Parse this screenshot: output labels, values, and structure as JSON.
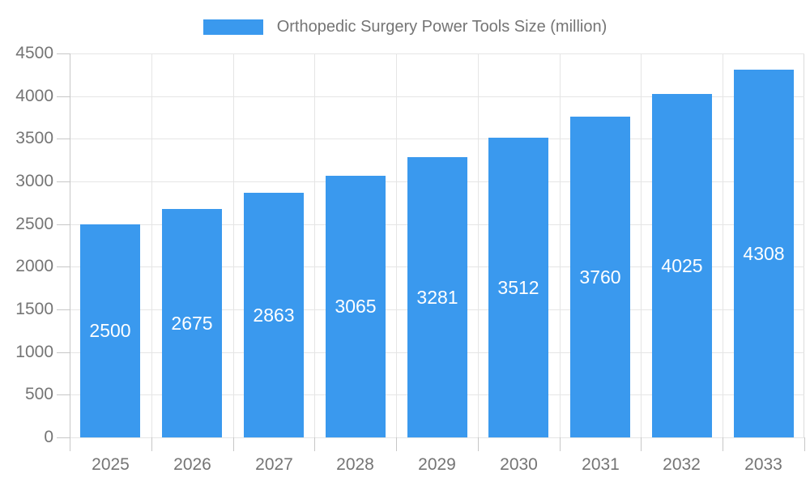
{
  "chart_data": {
    "type": "bar",
    "title": "Orthopedic Surgery Power Tools Size (million)",
    "categories": [
      "2025",
      "2026",
      "2027",
      "2028",
      "2029",
      "2030",
      "2031",
      "2032",
      "2033"
    ],
    "values": [
      2500,
      2675,
      2863,
      3065,
      3281,
      3512,
      3760,
      4025,
      4308
    ],
    "xlabel": "",
    "ylabel": "",
    "ylim": [
      0,
      4500
    ],
    "ytick_step": 500,
    "grid": true,
    "legend_position": "top",
    "bar_color": "#3a99ee",
    "bar_label_color": "#ffffff",
    "axis_text_color": "#757575",
    "grid_color": "#e5e5e5",
    "axis_line_color": "#c7c7c7"
  }
}
